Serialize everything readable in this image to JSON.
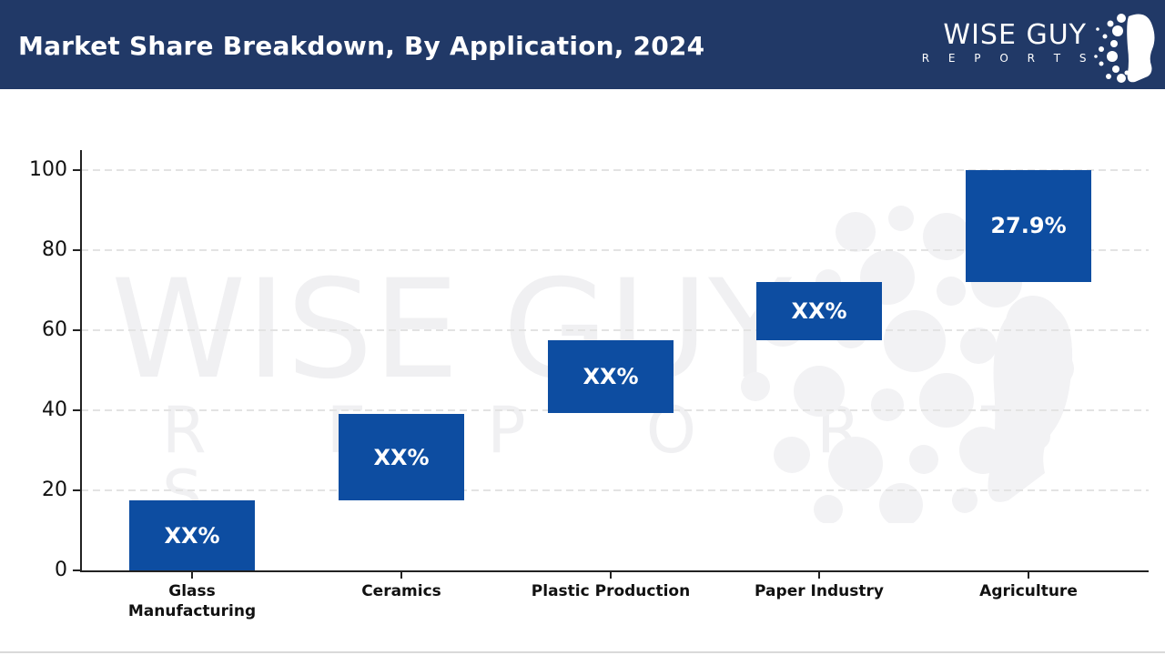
{
  "header": {
    "title": "Market Share Breakdown, By Application, 2024",
    "logo": {
      "line1": "WISE GUY",
      "line2": "R E P O R T S"
    }
  },
  "watermark": {
    "line1": "WISE GUY",
    "line2": "REPORTS"
  },
  "colors": {
    "header_bg": "#213967",
    "bar": "#0d4da1",
    "grid": "#e3e3e3",
    "axis": "#222222",
    "watermark": "#f0f0f2",
    "bar_label_text": "#ffffff"
  },
  "chart_data": {
    "type": "bar",
    "subtype": "waterfall",
    "title": "Market Share Breakdown, By Application, 2024",
    "xlabel": "",
    "ylabel": "",
    "categories": [
      "Glass\nManufacturing",
      "Ceramics",
      "Plastic Production",
      "Paper Industry",
      "Agriculture"
    ],
    "segments": [
      {
        "category": "Glass Manufacturing",
        "start": 0,
        "end": 17.5,
        "label": "XX%"
      },
      {
        "category": "Ceramics",
        "start": 17.5,
        "end": 39.0,
        "label": "XX%"
      },
      {
        "category": "Plastic Production",
        "start": 39.3,
        "end": 57.5,
        "label": "XX%"
      },
      {
        "category": "Paper Industry",
        "start": 57.5,
        "end": 72.1,
        "label": "XX%"
      },
      {
        "category": "Agriculture",
        "start": 72.1,
        "end": 100,
        "label": "27.9%"
      }
    ],
    "yticks": [
      0,
      20,
      40,
      60,
      80,
      100
    ],
    "ylim": [
      0,
      105
    ],
    "grid": "horizontal dashed",
    "legend": "none"
  }
}
